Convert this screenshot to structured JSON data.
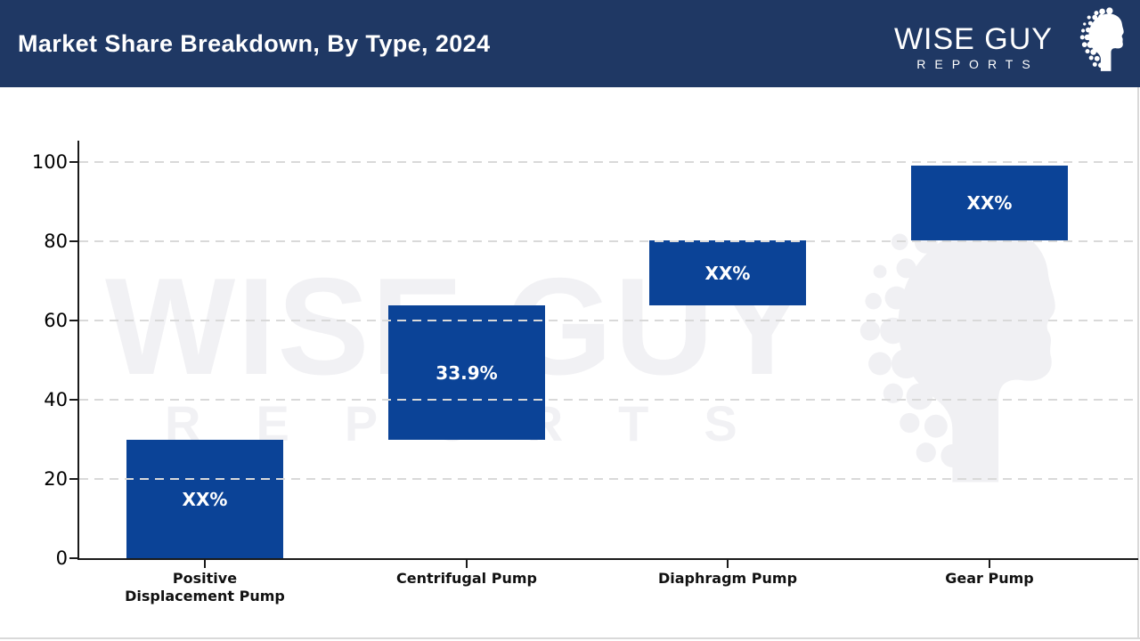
{
  "header": {
    "title": "Market Share Breakdown, By Type, 2024",
    "bg_color": "#1f3864",
    "logo": {
      "line1": "WISE GUY",
      "line2": "REPORTS"
    }
  },
  "watermark": {
    "line1": "WISE GUY",
    "line2": "REPORTS"
  },
  "chart_data": {
    "type": "bar",
    "subtype": "waterfall-floating-bars",
    "title": "Market Share Breakdown, By Type, 2024",
    "categories": [
      "Positive Displacement Pump",
      "Centrifugal Pump",
      "Diaphragm Pump",
      "Gear Pump"
    ],
    "category_label_lines": [
      [
        "Positive",
        "Displacement Pump"
      ],
      [
        "Centrifugal Pump"
      ],
      [
        "Diaphragm Pump"
      ],
      [
        "Gear Pump"
      ]
    ],
    "bars": [
      {
        "category": "Positive Displacement Pump",
        "label": "XX%",
        "start": 0,
        "end": 30
      },
      {
        "category": "Centrifugal Pump",
        "label": "33.9%",
        "start": 30,
        "end": 63.9
      },
      {
        "category": "Diaphragm Pump",
        "label": "XX%",
        "start": 63.9,
        "end": 80.2
      },
      {
        "category": "Gear Pump",
        "label": "XX%",
        "start": 80.2,
        "end": 99
      }
    ],
    "yticks": [
      0,
      20,
      40,
      60,
      80,
      100
    ],
    "ylim": [
      0,
      105
    ],
    "xlabel": "",
    "ylabel": "",
    "grid": "horizontal-dashed",
    "legend_position": "none",
    "bar_color": "#0b4397",
    "bar_label_color": "#ffffff",
    "axis_color": "#1a1a1a",
    "grid_color": "#d9d9d9"
  },
  "colors": {
    "header_bg": "#1f3864",
    "accent_blue": "#0b4397",
    "watermark": "#f1f1f4",
    "border": "#d9d9d9"
  }
}
